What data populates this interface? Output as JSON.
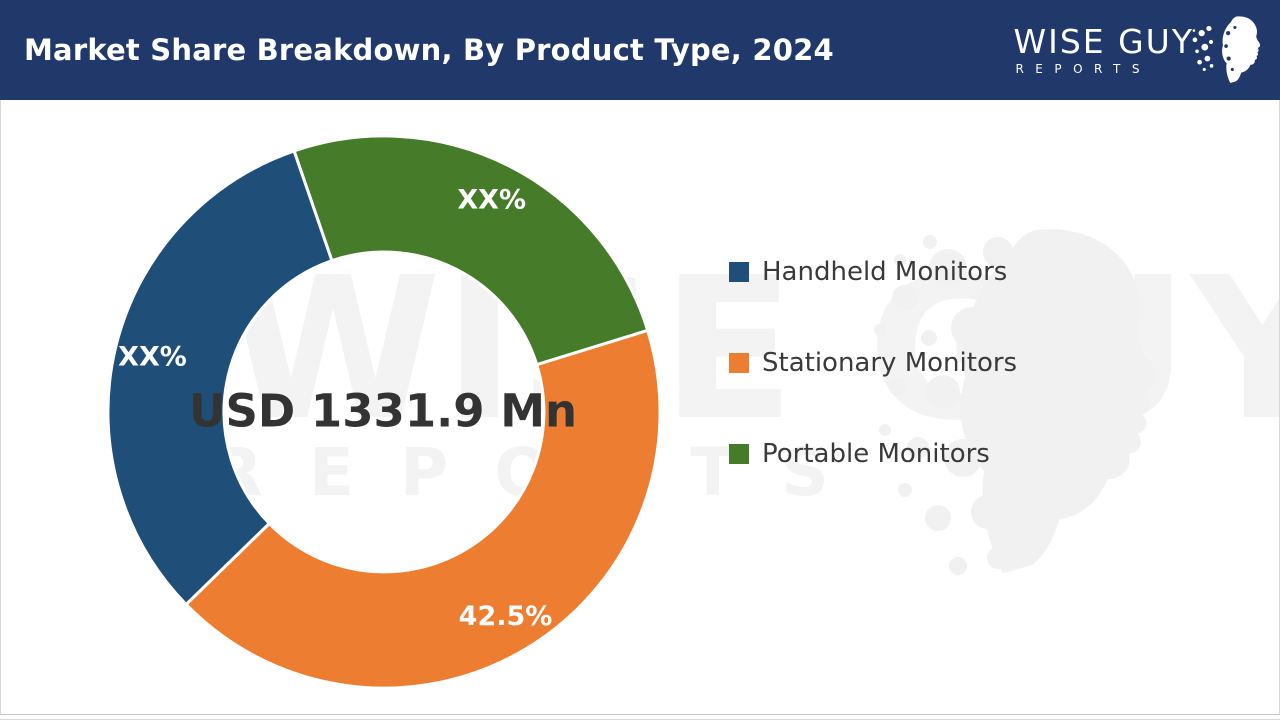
{
  "header": {
    "title": "Market Share Breakdown, By Product Type, 2024",
    "logo": {
      "line1": "WISE GUY",
      "line2": "REPORTS"
    }
  },
  "watermark": {
    "line1": "WISE GUY",
    "line2": "REPORTS"
  },
  "chart_data": {
    "type": "pie",
    "subtype": "donut",
    "title": "Market Share Breakdown, By Product Type, 2024",
    "center_label": "USD 1331.9 Mn",
    "donut_hole_ratio": 0.58,
    "start_angle_deg": 109,
    "direction": "clockwise",
    "draw_order": [
      "Portable Monitors",
      "Stationary Monitors",
      "Handheld Monitors"
    ],
    "legend_position": "right",
    "segments": [
      {
        "name": "Handheld Monitors",
        "label": "XX%",
        "value": 32,
        "estimated": true,
        "color": "#1f4e79"
      },
      {
        "name": "Stationary Monitors",
        "label": "42.5%",
        "value": 42.5,
        "estimated": false,
        "color": "#ed7d31"
      },
      {
        "name": "Portable Monitors",
        "label": "XX%",
        "value": 25.5,
        "estimated": true,
        "color": "#457b29"
      }
    ]
  },
  "colors": {
    "header_bg": "#21386b",
    "center_text": "#333333",
    "legend_text": "#3a3a3a",
    "watermark": "#f3f3f3"
  }
}
